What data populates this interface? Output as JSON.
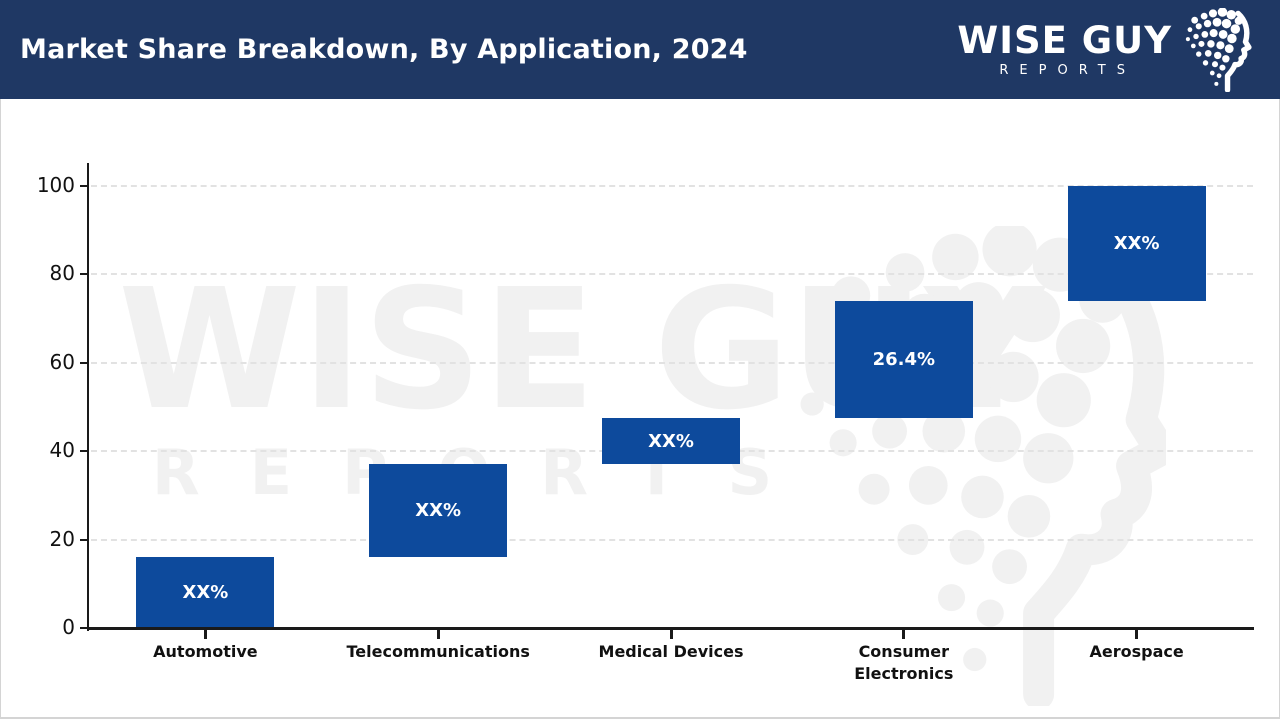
{
  "header": {
    "title": "Market Share Breakdown, By Application, 2024",
    "background": "#1f3864",
    "logo": {
      "line1": "WISE GUY",
      "line2": "REPORTS"
    }
  },
  "watermark": {
    "line1": "WISE GUY",
    "line2": "REPORTS"
  },
  "chart_data": {
    "type": "bar",
    "subtype": "floating-waterfall",
    "title": "Market Share Breakdown, By Application, 2024",
    "categories": [
      "Automotive",
      "Telecommunications",
      "Medical Devices",
      "Consumer\nElectronics",
      "Aerospace"
    ],
    "segments": [
      {
        "start": 0,
        "end": 16
      },
      {
        "start": 16,
        "end": 37
      },
      {
        "start": 37,
        "end": 47.6
      },
      {
        "start": 47.6,
        "end": 74
      },
      {
        "start": 74,
        "end": 100
      }
    ],
    "bar_labels": [
      "XX%",
      "XX%",
      "XX%",
      "26.4%",
      "XX%"
    ],
    "bar_color": "#0d4a9c",
    "label_color": "#ffffff",
    "xlabel": "",
    "ylabel": "",
    "ylim": [
      0,
      100
    ],
    "yticks": [
      0,
      20,
      40,
      60,
      80,
      100
    ],
    "grid": "horizontal-dashed",
    "legend": "none"
  }
}
